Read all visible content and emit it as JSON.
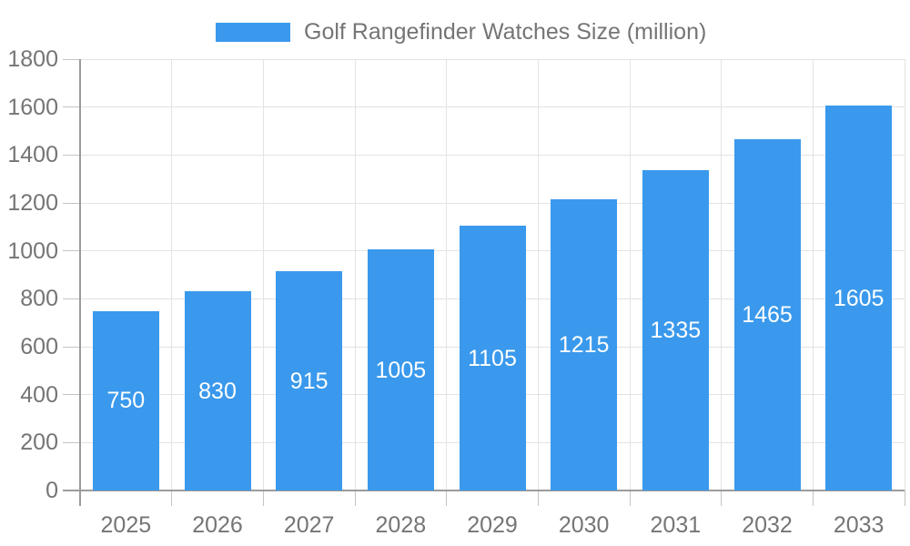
{
  "legend": {
    "label": "Golf Rangefinder Watches Size (million)"
  },
  "chart_data": {
    "type": "bar",
    "title": "Golf Rangefinder Watches Size (million)",
    "categories": [
      "2025",
      "2026",
      "2027",
      "2028",
      "2029",
      "2030",
      "2031",
      "2032",
      "2033"
    ],
    "values": [
      750,
      830,
      915,
      1005,
      1105,
      1215,
      1335,
      1465,
      1605
    ],
    "xlabel": "",
    "ylabel": "",
    "ylim": [
      0,
      1800
    ],
    "yticks": [
      0,
      200,
      400,
      600,
      800,
      1000,
      1200,
      1400,
      1600,
      1800
    ],
    "grid": true,
    "legend_position": "top",
    "colors": {
      "bar": "#3a99ec",
      "bar_label": "#ffffff",
      "axis_text": "#757575",
      "grid_line": "#e3e3e3",
      "axis_line": "#9b9b9b",
      "tick": "#c4c4c4",
      "background": "#ffffff"
    }
  }
}
